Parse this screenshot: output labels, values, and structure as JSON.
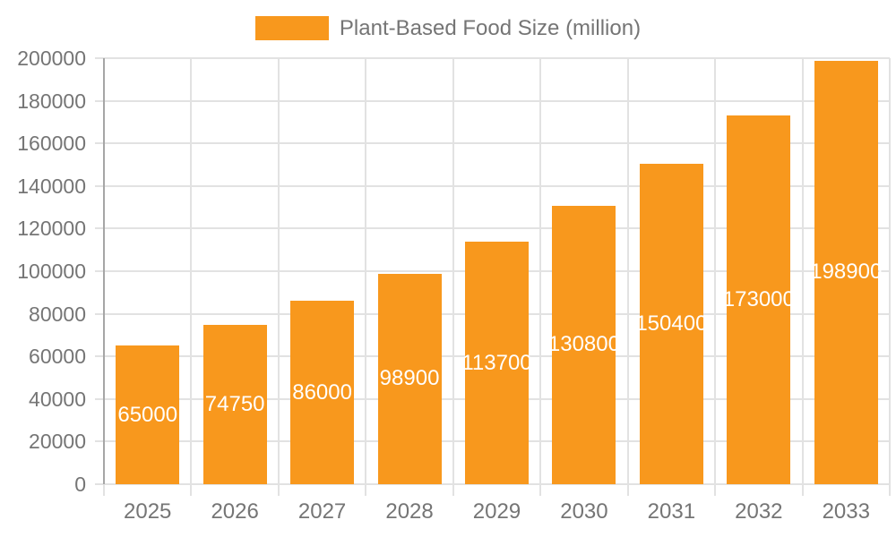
{
  "legend": {
    "position": "top-center",
    "items": [
      {
        "label": "Plant-Based Food Size (million)",
        "color": "#F8981D"
      }
    ]
  },
  "colors": {
    "bar": "#F8981D",
    "bar_label_text": "#FFFFFF",
    "axis_text": "#757575",
    "legend_text": "#757575",
    "grid_line": "#E2E2E2",
    "axis_line": "#A6A6A6",
    "background": "#FFFFFF"
  },
  "chart_data": {
    "type": "bar",
    "title": "Plant-Based Food Size (million)",
    "categories": [
      "2025",
      "2026",
      "2027",
      "2028",
      "2029",
      "2030",
      "2031",
      "2032",
      "2033"
    ],
    "series": [
      {
        "name": "Plant-Based Food Size (million)",
        "color": "#F8981D",
        "values": [
          65000,
          74750,
          86000,
          98900,
          113700,
          130800,
          150400,
          173000,
          198900
        ]
      }
    ],
    "value_labels_shown": true,
    "value_label_position": "inside-center",
    "xlabel": "",
    "ylabel": "",
    "ylim": [
      0,
      200000
    ],
    "yticks": [
      0,
      20000,
      40000,
      60000,
      80000,
      100000,
      120000,
      140000,
      160000,
      180000,
      200000
    ],
    "grid": "both",
    "legend_position": "top"
  }
}
